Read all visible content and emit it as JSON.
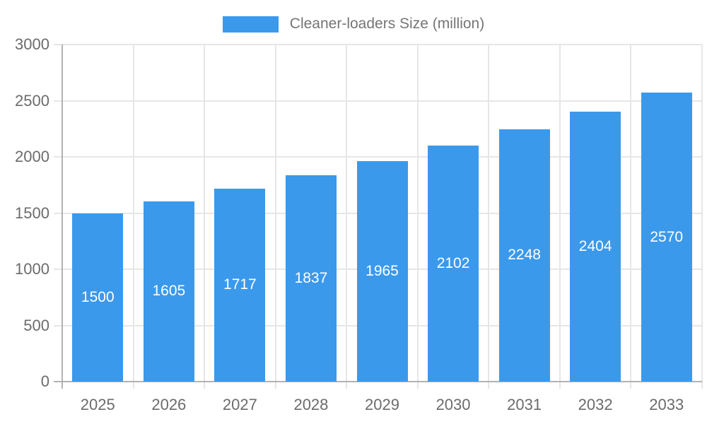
{
  "legend": {
    "label": "Cleaner-loaders Size (million)"
  },
  "chart_data": {
    "type": "bar",
    "title": "Cleaner-loaders Size (million)",
    "series_name": "Cleaner-loaders Size (million)",
    "categories": [
      "2025",
      "2026",
      "2027",
      "2028",
      "2029",
      "2030",
      "2031",
      "2032",
      "2033"
    ],
    "values": [
      1500,
      1605,
      1717,
      1837,
      1965,
      2102,
      2248,
      2404,
      2570
    ],
    "value_labels": [
      "1500",
      "1605",
      "1717",
      "1837",
      "1965",
      "2102",
      "2248",
      "2404",
      "2570"
    ],
    "xlabel": "",
    "ylabel": "",
    "ylim": [
      0,
      3000
    ],
    "yticks": [
      0,
      500,
      1000,
      1500,
      2000,
      2500,
      3000
    ],
    "grid": true,
    "legend_position": "top",
    "value_labels_position": "center-inside"
  },
  "colors": {
    "bar": "#3b99ec",
    "grid": "#e6e6e6",
    "axis": "#b2b2b2",
    "tick_label": "#6b6b6b",
    "legend_text": "#757575",
    "value_label": "#ffffff",
    "background": "#ffffff"
  }
}
